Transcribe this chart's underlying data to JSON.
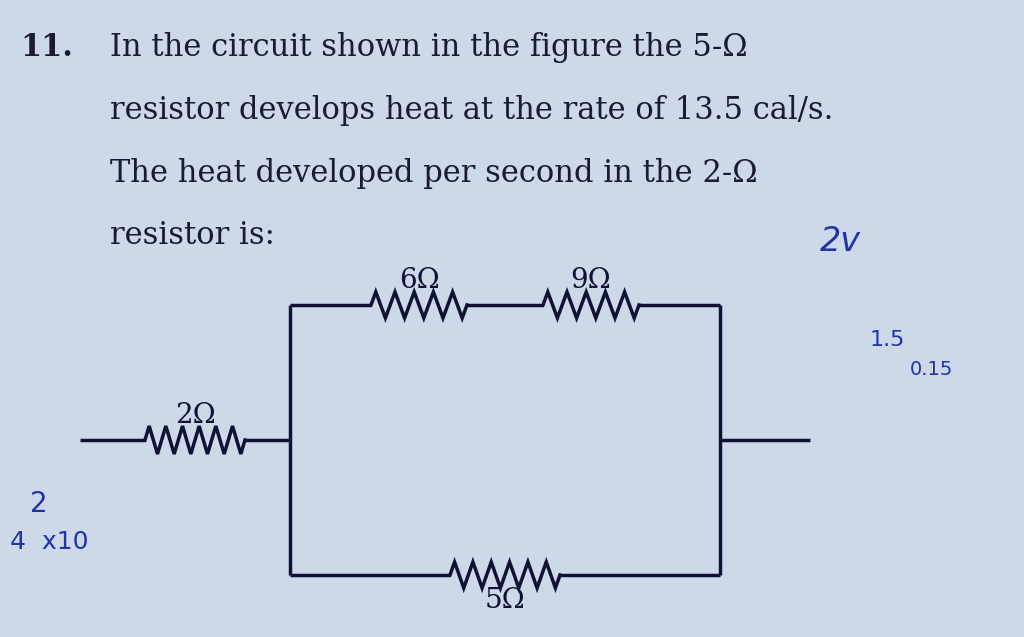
{
  "background_color": "#cdd8e8",
  "text_color": "#1a1a30",
  "question_number": "11.",
  "question_line1": "In the circuit shown in the figure the 5-Ω",
  "question_line2": "resistor develops heat at the rate of 13.5 cal/s.",
  "question_line3": "The heat developed per second in the 2-Ω",
  "question_line4": "resistor is:",
  "resistor_6": "6Ω",
  "resistor_9": "9Ω",
  "resistor_2": "2Ω",
  "resistor_5": "5Ω",
  "hw_2v": "2v",
  "hw_frac_top": "2",
  "hw_frac_bot": "4  x10",
  "wire_color": "#111133",
  "label_color": "#111133",
  "hw_color": "#2233aa"
}
